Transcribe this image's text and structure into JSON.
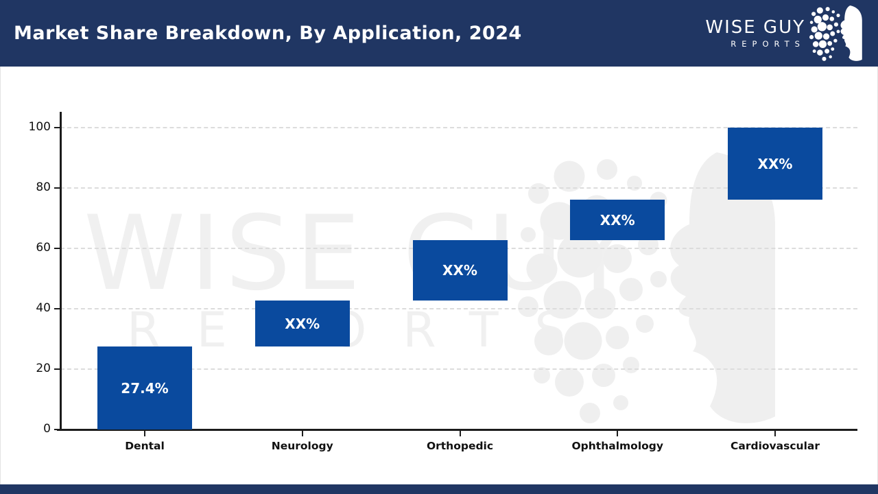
{
  "header": {
    "title": "Market Share Breakdown, By Application, 2024",
    "bg_color": "#203663",
    "text_color": "#ffffff"
  },
  "logo": {
    "name": "WISE GUY",
    "tagline": "REPORTS"
  },
  "watermark": {
    "name": "WISE GUY",
    "tagline": "REPORTS"
  },
  "footer": {
    "bg_color": "#203663"
  },
  "chart_data": {
    "type": "bar",
    "subtype": "waterfall",
    "title": "Market Share Breakdown, By Application, 2024",
    "categories": [
      "Dental",
      "Neurology",
      "Orthopedic",
      "Ophthalmology",
      "Cardiovascular"
    ],
    "segments": [
      {
        "category": "Dental",
        "start": 0,
        "end": 27.4,
        "label": "27.4%"
      },
      {
        "category": "Neurology",
        "start": 27.4,
        "end": 42.7,
        "label": "XX%"
      },
      {
        "category": "Orthopedic",
        "start": 42.7,
        "end": 62.7,
        "label": "XX%"
      },
      {
        "category": "Ophthalmology",
        "start": 62.7,
        "end": 76.1,
        "label": "XX%"
      },
      {
        "category": "Cardiovascular",
        "start": 76.1,
        "end": 100,
        "label": "XX%"
      }
    ],
    "yticks": [
      0,
      20,
      40,
      60,
      80,
      100
    ],
    "ylim": [
      0,
      105
    ],
    "xlabel": "",
    "ylabel": "",
    "legend": "none",
    "grid": "horizontal-dashed",
    "bar_color": "#0a4a9e",
    "bar_label_color": "#ffffff",
    "axis_color": "#1c1c1c",
    "grid_color": "#dcdcdc"
  }
}
